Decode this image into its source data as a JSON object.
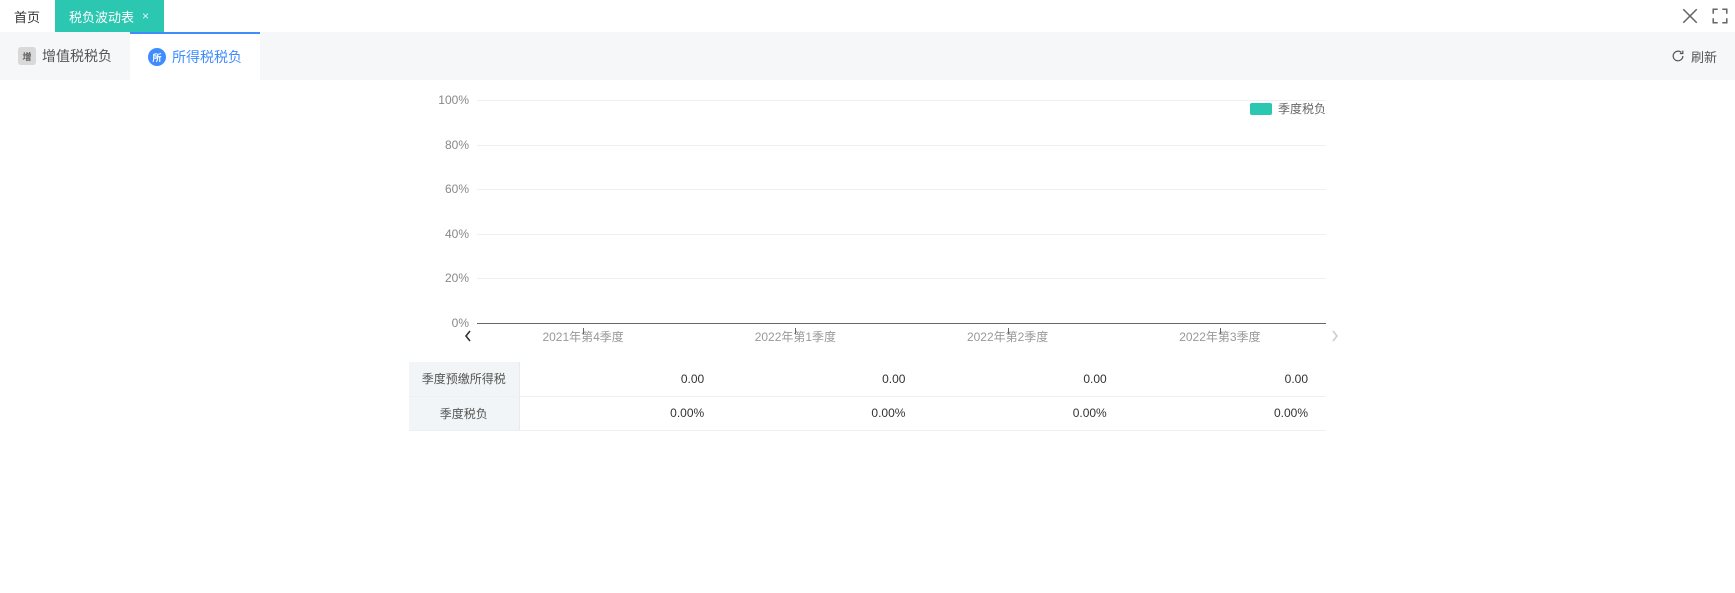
{
  "top_tabs": {
    "home": "首页",
    "active": "税负波动表"
  },
  "sub_tabs": [
    {
      "label": "增值税税负",
      "selected": false,
      "icon_text": "增",
      "icon_style": "grey"
    },
    {
      "label": "所得税税负",
      "selected": true,
      "icon_text": "所",
      "icon_style": "blue"
    }
  ],
  "refresh_label": "刷新",
  "chart": {
    "legend_label": "季度税负",
    "legend_color": "#2bc7b1",
    "y_ticks": [
      "0%",
      "20%",
      "40%",
      "60%",
      "80%",
      "100%"
    ],
    "ylim": [
      0,
      100
    ],
    "x_categories": [
      "2021年第4季度",
      "2022年第1季度",
      "2022年第2季度",
      "2022年第3季度"
    ],
    "series_values": [
      0,
      0,
      0,
      0
    ],
    "gridline_color": "#f0f0f0",
    "axis_color": "#666666",
    "background_color": "#ffffff"
  },
  "table": {
    "row_headers": [
      "季度预缴所得税",
      "季度税负"
    ],
    "rows": [
      [
        "0.00",
        "0.00",
        "0.00",
        "0.00"
      ],
      [
        "0.00%",
        "0.00%",
        "0.00%",
        "0.00%"
      ]
    ]
  }
}
